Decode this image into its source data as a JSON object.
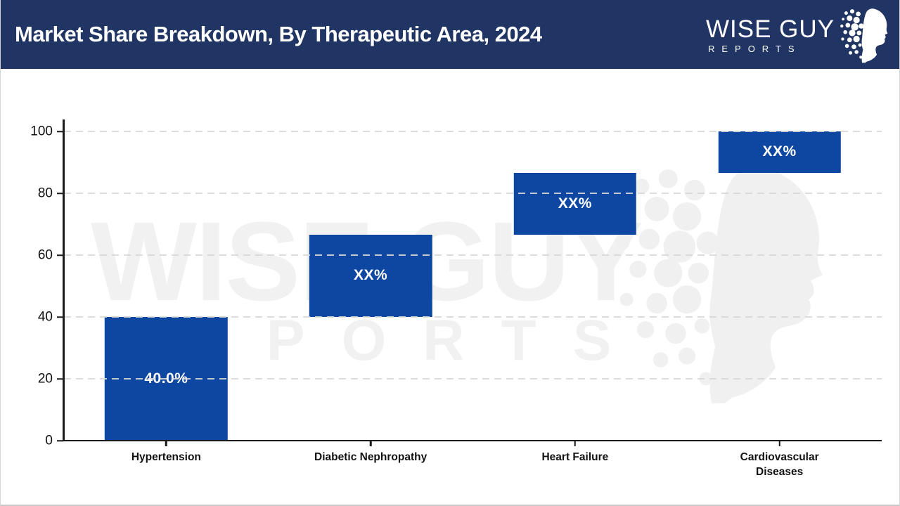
{
  "header": {
    "title": "Market Share Breakdown, By Therapeutic Area, 2024",
    "bg_color": "#213564",
    "logo": {
      "line1": "WISE GUY",
      "line2": "REPORTS"
    }
  },
  "watermark": {
    "line1": "WISE GUY",
    "line2": "REPORTS"
  },
  "chart_data": {
    "type": "bar",
    "subtype": "waterfall",
    "title": "Market Share Breakdown, By Therapeutic Area, 2024",
    "categories": [
      "Hypertension",
      "Diabetic Nephropathy",
      "Heart Failure",
      "Cardiovascular Diseases"
    ],
    "segments": [
      {
        "category": "Hypertension",
        "start": 0,
        "end": 40,
        "label": "40.0%"
      },
      {
        "category": "Diabetic Nephropathy",
        "start": 40,
        "end": 66.7,
        "label": "XX%"
      },
      {
        "category": "Heart Failure",
        "start": 66.7,
        "end": 86.7,
        "label": "XX%"
      },
      {
        "category": "Cardiovascular Diseases",
        "start": 86.7,
        "end": 100,
        "label": "XX%"
      }
    ],
    "yticks": [
      0,
      20,
      40,
      60,
      80,
      100
    ],
    "ylim": [
      0,
      100
    ],
    "xlabel": "",
    "ylabel": "",
    "bar_color": "#0d47a1",
    "grid": "horizontal-dashed",
    "grid_color": "#d8d8d8",
    "legend": "none"
  }
}
